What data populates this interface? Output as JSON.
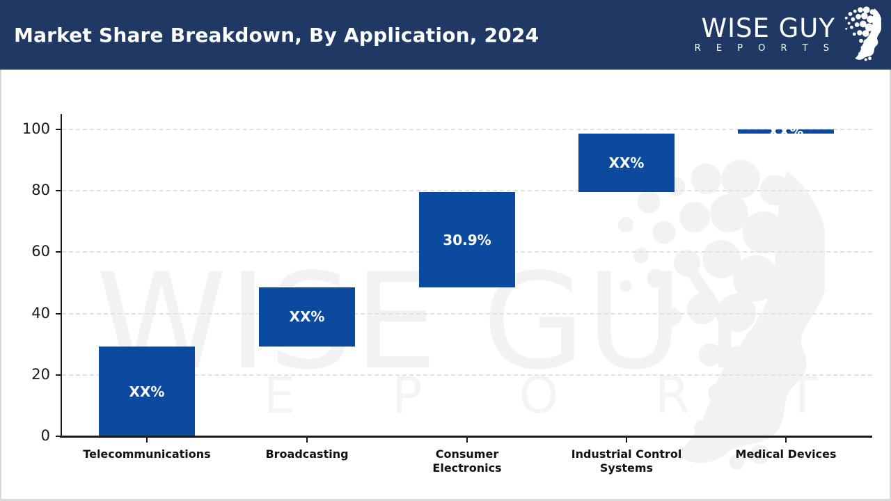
{
  "header": {
    "title": "Market Share Breakdown, By Application, 2024",
    "logo": {
      "line1": "WISE GUY",
      "line2": "R E P O R T S"
    }
  },
  "watermark": {
    "line1": "WISE GUY",
    "line2": "R E P O R T S"
  },
  "colors": {
    "header_bg": "#1f3864",
    "bar_fill": "#0b4a9e",
    "gridline": "#e1e1e1",
    "axis": "#1a1a1a",
    "bar_label_text": "#ffffff",
    "watermark_text": "#f2f2f2"
  },
  "chart_data": {
    "type": "bar",
    "subtype": "waterfall-stacked",
    "title": "Market Share Breakdown, By Application, 2024",
    "xlabel": "",
    "ylabel": "",
    "ylim": [
      0,
      105
    ],
    "yticks": [
      0,
      20,
      40,
      60,
      80,
      100
    ],
    "grid": "horizontal-dashed",
    "legend": "none",
    "categories": [
      "Telecommunications",
      "Broadcasting",
      "Consumer Electronics",
      "Industrial Control Systems",
      "Medical Devices"
    ],
    "category_label_lines": [
      [
        "Telecommunications"
      ],
      [
        "Broadcasting"
      ],
      [
        "Consumer",
        "Electronics"
      ],
      [
        "Industrial Control",
        "Systems"
      ],
      [
        "Medical Devices"
      ]
    ],
    "segments": [
      {
        "category": "Telecommunications",
        "start": 0,
        "end": 29.2,
        "height": 29.2,
        "value_label": "XX%"
      },
      {
        "category": "Broadcasting",
        "start": 29.2,
        "end": 48.6,
        "height": 19.4,
        "value_label": "XX%"
      },
      {
        "category": "Consumer Electronics",
        "start": 48.6,
        "end": 79.5,
        "height": 30.9,
        "value_label": "30.9%"
      },
      {
        "category": "Industrial Control Systems",
        "start": 79.5,
        "end": 98.7,
        "height": 19.2,
        "value_label": "XX%"
      },
      {
        "category": "Medical Devices",
        "start": 98.7,
        "end": 100,
        "height": 1.3,
        "value_label": "XX%"
      }
    ]
  }
}
